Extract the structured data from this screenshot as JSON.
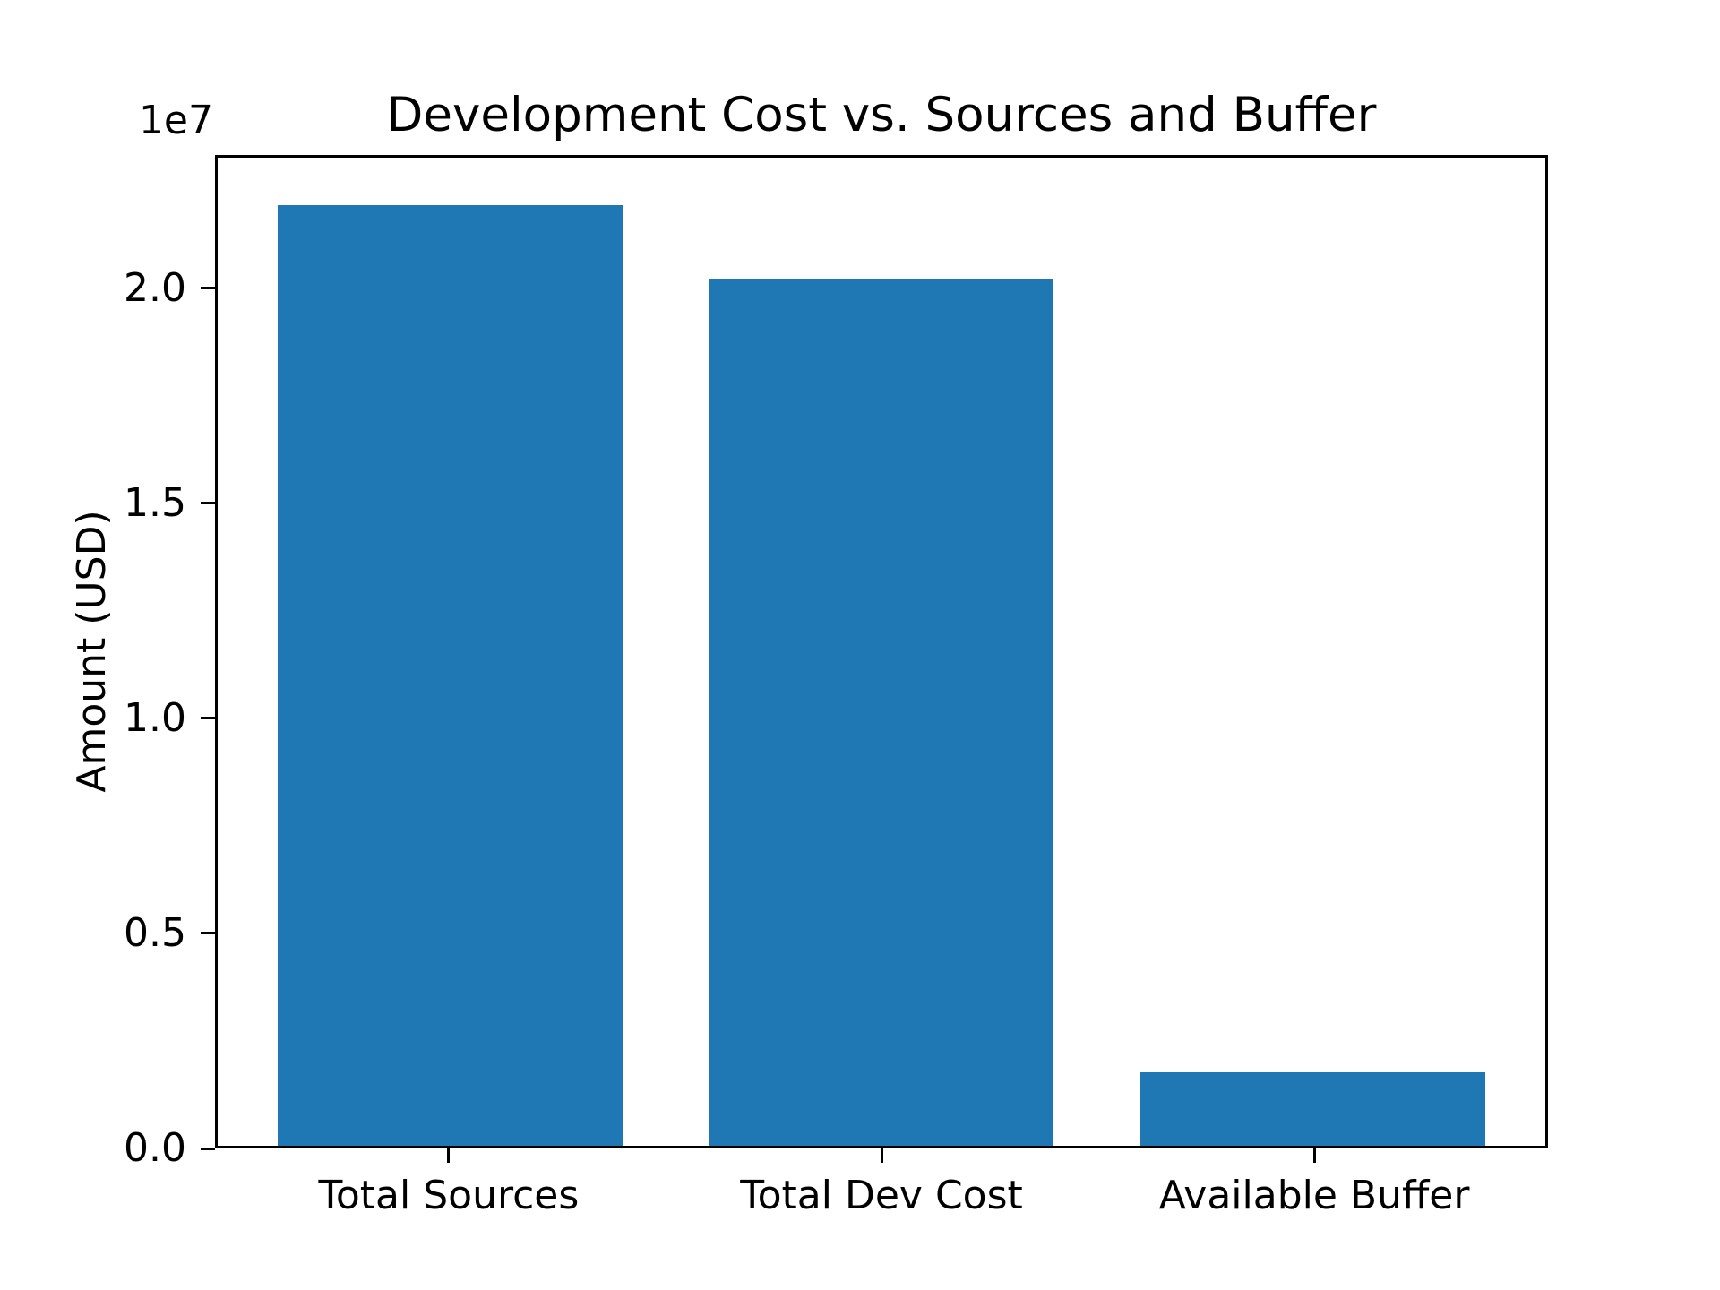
{
  "chart_data": {
    "type": "bar",
    "title": "Development Cost vs. Sources and Buffer",
    "ylabel": "Amount (USD)",
    "xlabel": "",
    "offset_label": "1e7",
    "categories": [
      "Total Sources",
      "Total Dev Cost",
      "Available Buffer"
    ],
    "values": [
      22000000,
      20280000,
      1720000
    ],
    "ylim": [
      0,
      23100000
    ],
    "xlim": [
      -0.54,
      2.54
    ],
    "yticks": [
      0,
      5000000,
      10000000,
      15000000,
      20000000
    ],
    "ytick_labels": [
      "0.0",
      "0.5",
      "1.0",
      "1.5",
      "2.0"
    ],
    "bar_width": 0.8,
    "grid": false,
    "legend": "none",
    "bar_color": "#1f77b4"
  },
  "colors": {
    "bar": "#1f77b4",
    "axis": "#000000",
    "text": "#000000",
    "background": "#ffffff"
  }
}
